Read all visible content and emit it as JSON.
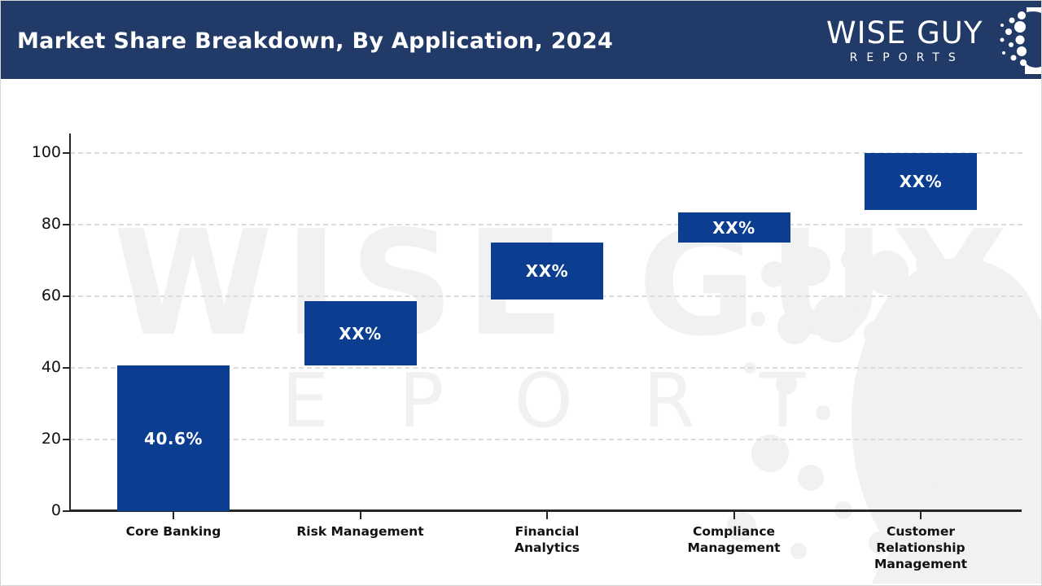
{
  "header": {
    "title": "Market Share Breakdown, By Application, 2024",
    "background_color": "#223a67",
    "logo": {
      "name": "Wise Guy Reports",
      "line1": "WISE GUY",
      "line2": "REPORTS"
    }
  },
  "watermark": {
    "line1": "WISE GUY",
    "line2": "REPORTS"
  },
  "chart_data": {
    "type": "bar",
    "subtype": "waterfall",
    "title": "Market Share Breakdown, By Application, 2024",
    "categories": [
      "Core Banking",
      "Risk Management",
      "Financial Analytics",
      "Compliance Management",
      "Customer Relationship Management"
    ],
    "category_lines": [
      [
        "Core Banking"
      ],
      [
        "Risk Management"
      ],
      [
        "Financial",
        "Analytics"
      ],
      [
        "Compliance",
        "Management"
      ],
      [
        "Customer",
        "Relationship",
        "Management"
      ]
    ],
    "segments": [
      {
        "category": "Core Banking",
        "start": 0,
        "end": 40.6,
        "label": "40.6%"
      },
      {
        "category": "Risk Management",
        "start": 40.7,
        "end": 58.6,
        "label": "XX%"
      },
      {
        "category": "Financial Analytics",
        "start": 59.0,
        "end": 75.0,
        "label": "XX%"
      },
      {
        "category": "Compliance Management",
        "start": 75.0,
        "end": 83.4,
        "label": "XX%"
      },
      {
        "category": "Customer Relationship Management",
        "start": 84.1,
        "end": 100.0,
        "label": "XX%"
      }
    ],
    "ylim": [
      0,
      100
    ],
    "yticks": [
      0,
      20,
      40,
      60,
      80,
      100
    ],
    "bar_color": "#0b3d91",
    "value_label_color": "#ffffff",
    "grid": "horizontal-dashed",
    "legend": "none"
  }
}
